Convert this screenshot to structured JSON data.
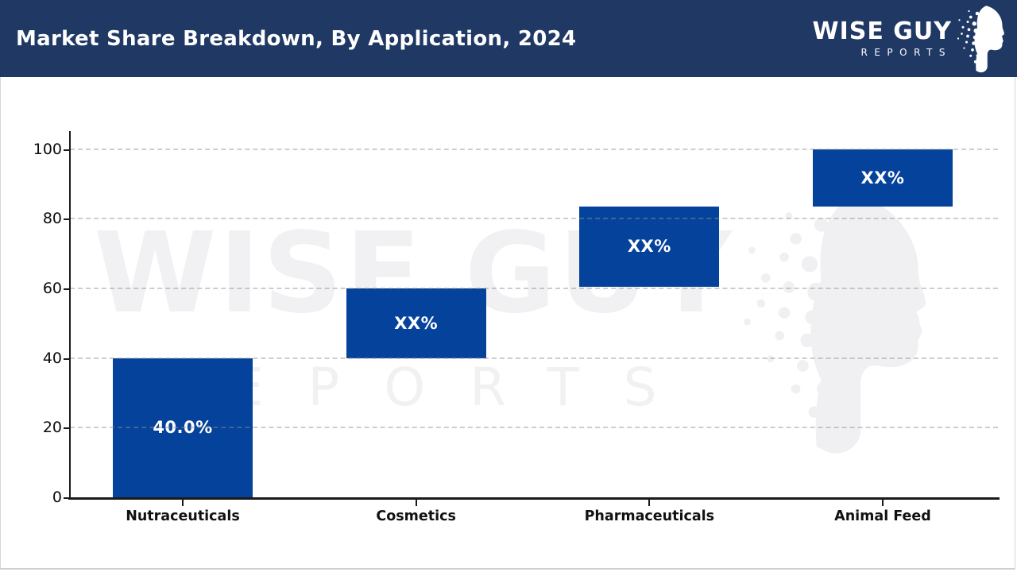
{
  "header": {
    "title": "Market Share Breakdown, By Application, 2024",
    "logo": {
      "line1": "WISE GUY",
      "line2": "REPORTS"
    }
  },
  "watermark": {
    "line1": "WISE GUY",
    "line2": "REPORTS"
  },
  "colors": {
    "header_bg": "#1F3864",
    "bar": "#05429B",
    "value_label": "#ffffff",
    "axis": "#1a1a1a",
    "watermark": "#f1f1f4"
  },
  "chart_data": {
    "type": "waterfall",
    "title": "Market Share Breakdown, By Application, 2024",
    "categories": [
      "Nutraceuticals",
      "Cosmetics",
      "Pharmaceuticals",
      "Animal Feed"
    ],
    "segments": [
      {
        "category": "Nutraceuticals",
        "start": 0,
        "end": 40,
        "label": "40.0%"
      },
      {
        "category": "Cosmetics",
        "start": 40,
        "end": 60,
        "label": "XX%"
      },
      {
        "category": "Pharmaceuticals",
        "start": 60.5,
        "end": 83.5,
        "label": "XX%"
      },
      {
        "category": "Animal Feed",
        "start": 83.5,
        "end": 100,
        "label": "XX%"
      }
    ],
    "ylim": [
      0,
      100
    ],
    "yticks": [
      0,
      20,
      40,
      60,
      80,
      100
    ],
    "grid": true,
    "legend": false,
    "xlabel": "",
    "ylabel": ""
  }
}
